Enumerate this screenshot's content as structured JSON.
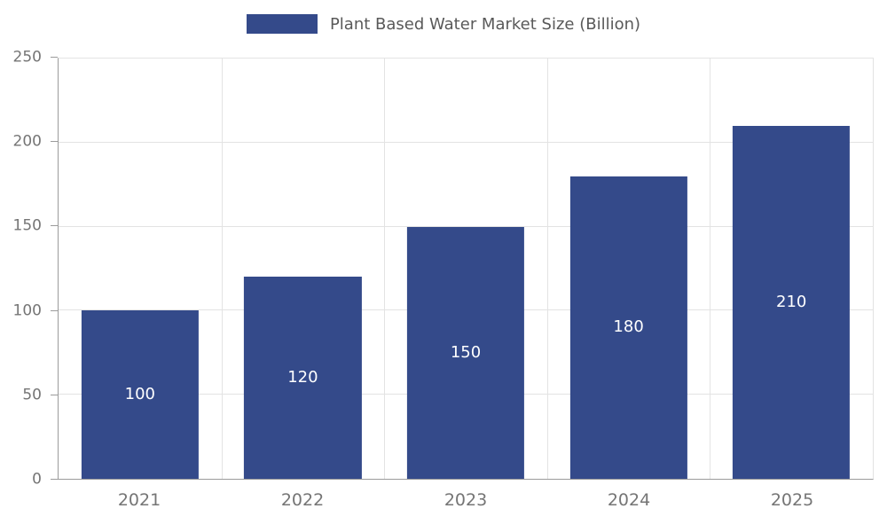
{
  "chart_data": {
    "type": "bar",
    "title": "Plant Based Water Market Size (Billion)",
    "legend": [
      "Plant Based Water Market Size (Billion)"
    ],
    "legend_position": "top-center",
    "categories": [
      "2021",
      "2022",
      "2023",
      "2024",
      "2025"
    ],
    "values": [
      100,
      120,
      150,
      180,
      210
    ],
    "bar_labels": [
      "100",
      "120",
      "150",
      "180",
      "210"
    ],
    "xlabel": "",
    "ylabel": "",
    "ylim": [
      0,
      250
    ],
    "yticks": [
      0,
      50,
      100,
      150,
      200,
      250
    ],
    "grid": true,
    "colors": {
      "bar": "#344a8a",
      "bar_label": "#ffffff",
      "grid": "#e3e3e3",
      "axis": "#9b9b9b",
      "tick_label": "#757575",
      "legend_text": "#595959"
    }
  }
}
